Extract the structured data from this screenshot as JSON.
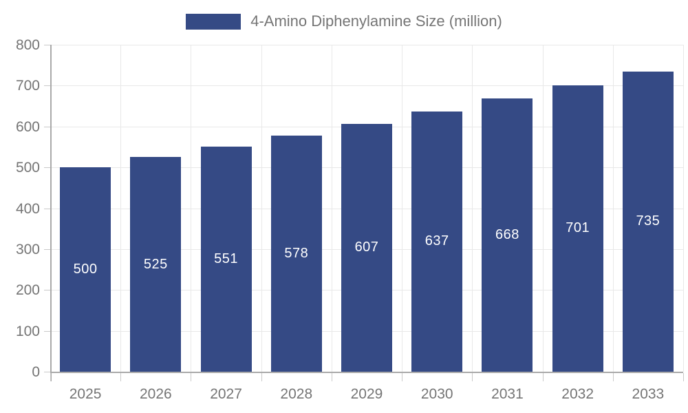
{
  "chart_data": {
    "type": "bar",
    "title": "4-Amino Diphenylamine Size (million)",
    "categories": [
      "2025",
      "2026",
      "2027",
      "2028",
      "2029",
      "2030",
      "2031",
      "2032",
      "2033"
    ],
    "values": [
      500,
      525,
      551,
      578,
      607,
      637,
      668,
      701,
      735
    ],
    "xlabel": "",
    "ylabel": "",
    "ylim": [
      0,
      800
    ],
    "yticks": [
      0,
      100,
      200,
      300,
      400,
      500,
      600,
      700,
      800
    ],
    "grid": true,
    "legend_position": "top",
    "legend_entries": [
      "4-Amino Diphenylamine Size (million)"
    ],
    "colors": {
      "bar_fill": "#354a85",
      "bar_value_text": "#ffffff",
      "axis_text": "#757575",
      "grid_line": "#e8e8e8",
      "axis_line": "#a9a9a9",
      "tick_mark": "#c9c9c9",
      "background": "#ffffff"
    }
  }
}
